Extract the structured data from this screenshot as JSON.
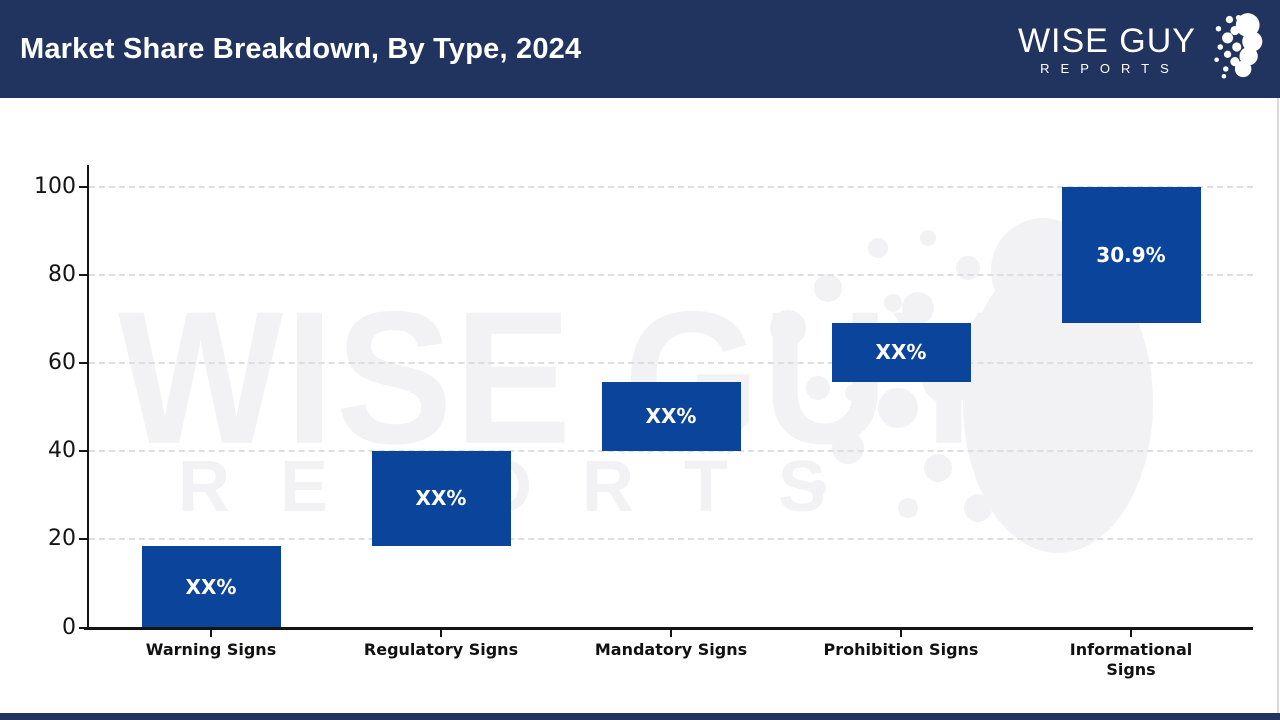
{
  "header": {
    "background": "#21335F",
    "title": "Market Share Breakdown, By Type, 2024",
    "logo": {
      "line1": "WISE GUY",
      "line2": "REPORTS"
    }
  },
  "watermark": {
    "line1": "WISE GUY",
    "line2": "REPORTS"
  },
  "chart_data": {
    "type": "bar",
    "subtype": "waterfall",
    "title": "Market Share Breakdown, By Type, 2024",
    "categories": [
      "Warning Signs",
      "Regulatory Signs",
      "Mandatory Signs",
      "Prohibition Signs",
      "Informational\nSigns"
    ],
    "segments": [
      {
        "category": "Warning Signs",
        "start": 0,
        "end": 18.6,
        "label": "XX%"
      },
      {
        "category": "Regulatory Signs",
        "start": 18.6,
        "end": 40.0,
        "label": "XX%"
      },
      {
        "category": "Mandatory Signs",
        "start": 40.0,
        "end": 55.8,
        "label": "XX%"
      },
      {
        "category": "Prohibition Signs",
        "start": 55.8,
        "end": 69.1,
        "label": "XX%"
      },
      {
        "category": "Informational Signs",
        "start": 69.1,
        "end": 100.0,
        "label": "30.9%"
      }
    ],
    "ylim": [
      0,
      100
    ],
    "yticks": [
      0,
      20,
      40,
      60,
      80,
      100
    ],
    "grid": {
      "horizontal": true,
      "style": "dashed",
      "color": "#dedede"
    },
    "bar_color": "#0A449B",
    "value_label_color": "#ffffff",
    "axis_color": "#141414",
    "plot_background": "#ffffff"
  }
}
